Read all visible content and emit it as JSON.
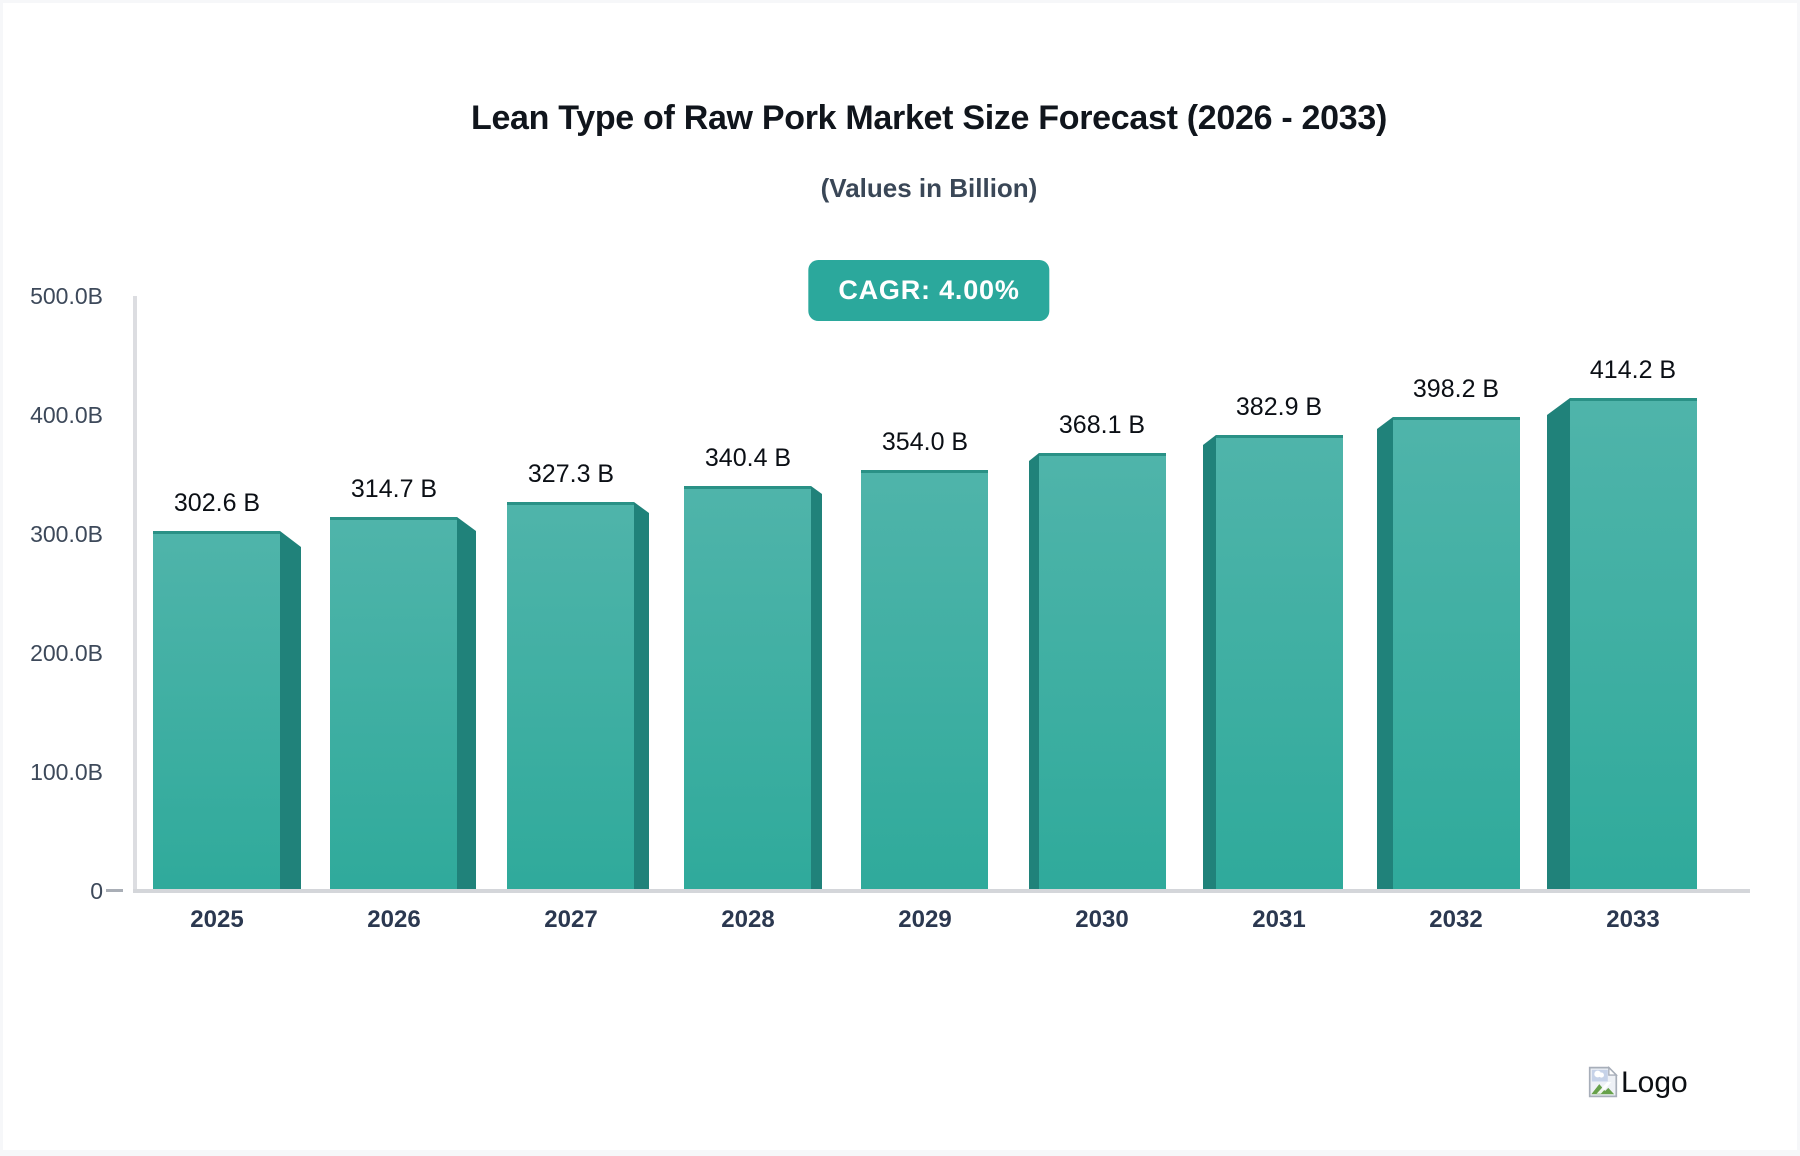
{
  "header": {
    "title": "Lean Type of Raw Pork Market Size Forecast (2026 - 2033)",
    "subtitle": "(Values in Billion)",
    "cagr_badge": "CAGR: 4.00%"
  },
  "chart_data": {
    "type": "bar",
    "title": "Lean Type of Raw Pork Market Size Forecast (2026 - 2033)",
    "subtitle": "(Values in Billion)",
    "cagr_percent": "4.00%",
    "unit": "Billion",
    "categories": [
      "2025",
      "2026",
      "2027",
      "2028",
      "2029",
      "2030",
      "2031",
      "2032",
      "2033"
    ],
    "values": [
      302.6,
      314.7,
      327.3,
      340.4,
      354.0,
      368.1,
      382.9,
      398.2,
      414.2
    ],
    "value_labels": [
      "302.6 B",
      "314.7 B",
      "327.3 B",
      "340.4 B",
      "354.0 B",
      "368.1 B",
      "382.9 B",
      "398.2 B",
      "414.2 B"
    ],
    "ylim": [
      0,
      500
    ],
    "yticks": {
      "values": [
        0,
        100,
        200,
        300,
        400,
        500
      ],
      "labels": [
        "0",
        "100.0B",
        "200.0B",
        "300.0B",
        "400.0B",
        "500.0B"
      ]
    },
    "grid": false,
    "legend": false,
    "bar_style": "3d-perspective-teal"
  },
  "colors": {
    "bar_face_top": "#4fb4aa",
    "bar_face_bottom": "#2faa9b",
    "bar_top_edge": "#2a9186",
    "bar_side": "#20827a",
    "badge_bg": "#2ba89c",
    "badge_text": "#ffffff",
    "axis_line": "#dcdde1",
    "baseline": "#d4d6da",
    "y_label": "#3d495a",
    "x_label": "#2b3850",
    "value_label": "#0b0f15",
    "title": "#10151c",
    "subtitle": "#3a4757"
  },
  "footer": {
    "logo_text": "Logo",
    "logo_icon": "broken-image-icon"
  }
}
